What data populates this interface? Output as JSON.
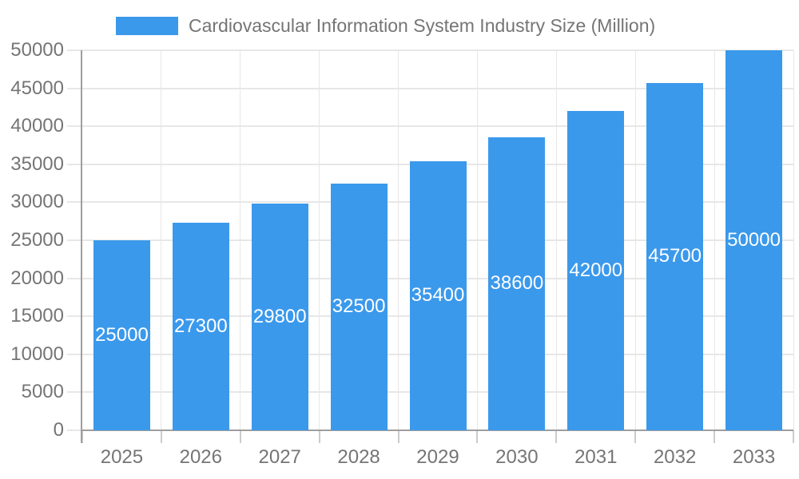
{
  "chart_data": {
    "type": "bar",
    "title": "Cardiovascular Information System Industry Size (Million)",
    "categories": [
      "2025",
      "2026",
      "2027",
      "2028",
      "2029",
      "2030",
      "2031",
      "2032",
      "2033"
    ],
    "values": [
      25000,
      27300,
      29800,
      32500,
      35400,
      38600,
      42000,
      45700,
      50000
    ],
    "bar_value_labels": [
      "25000",
      "27300",
      "29800",
      "32500",
      "35400",
      "38600",
      "42000",
      "45700",
      "50000"
    ],
    "xlabel": "",
    "ylabel": "",
    "ylim": [
      0,
      50000
    ],
    "ytick_step": 5000,
    "ytick_labels": [
      "0",
      "5000",
      "10000",
      "15000",
      "20000",
      "25000",
      "30000",
      "35000",
      "40000",
      "45000",
      "50000"
    ],
    "grid": "horizontal and vertical category boundaries",
    "legend_position": "top",
    "bar_labels_position": "inside-center",
    "colors": {
      "bar": "#3B99EB",
      "bar_label": "#FFFFFF",
      "axis_text": "#757575",
      "gridline": "#E7E7E7",
      "axis_line": "#9E9E9E",
      "x_tick": "#CCCCCC",
      "background": "#FFFFFF"
    }
  }
}
